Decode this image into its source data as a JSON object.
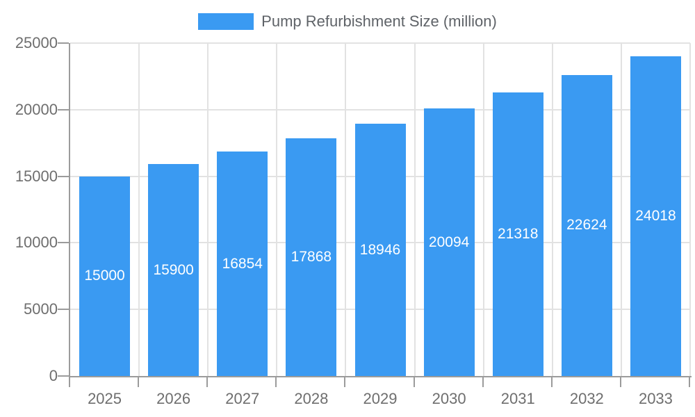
{
  "chart_data": {
    "type": "bar",
    "categories": [
      "2025",
      "2026",
      "2027",
      "2028",
      "2029",
      "2030",
      "2031",
      "2032",
      "2033"
    ],
    "values": [
      15000,
      15900,
      16854,
      17868,
      18946,
      20094,
      21318,
      22624,
      24018
    ],
    "title": "",
    "xlabel": "",
    "ylabel": "",
    "legend": "Pump Refurbishment Size (million)",
    "legend_position": "top-center",
    "ylim": [
      0,
      25000
    ],
    "yticks": [
      0,
      5000,
      10000,
      15000,
      20000,
      25000
    ],
    "grid": true
  },
  "colors": {
    "bar": "#3A9AF2",
    "bar_label": "#FFFFFF",
    "axis": "#9B9B9B",
    "grid": "#E2E2E2",
    "tick_label": "#6E6E6E",
    "legend_text": "#5F6368",
    "background": "#FFFFFF"
  }
}
